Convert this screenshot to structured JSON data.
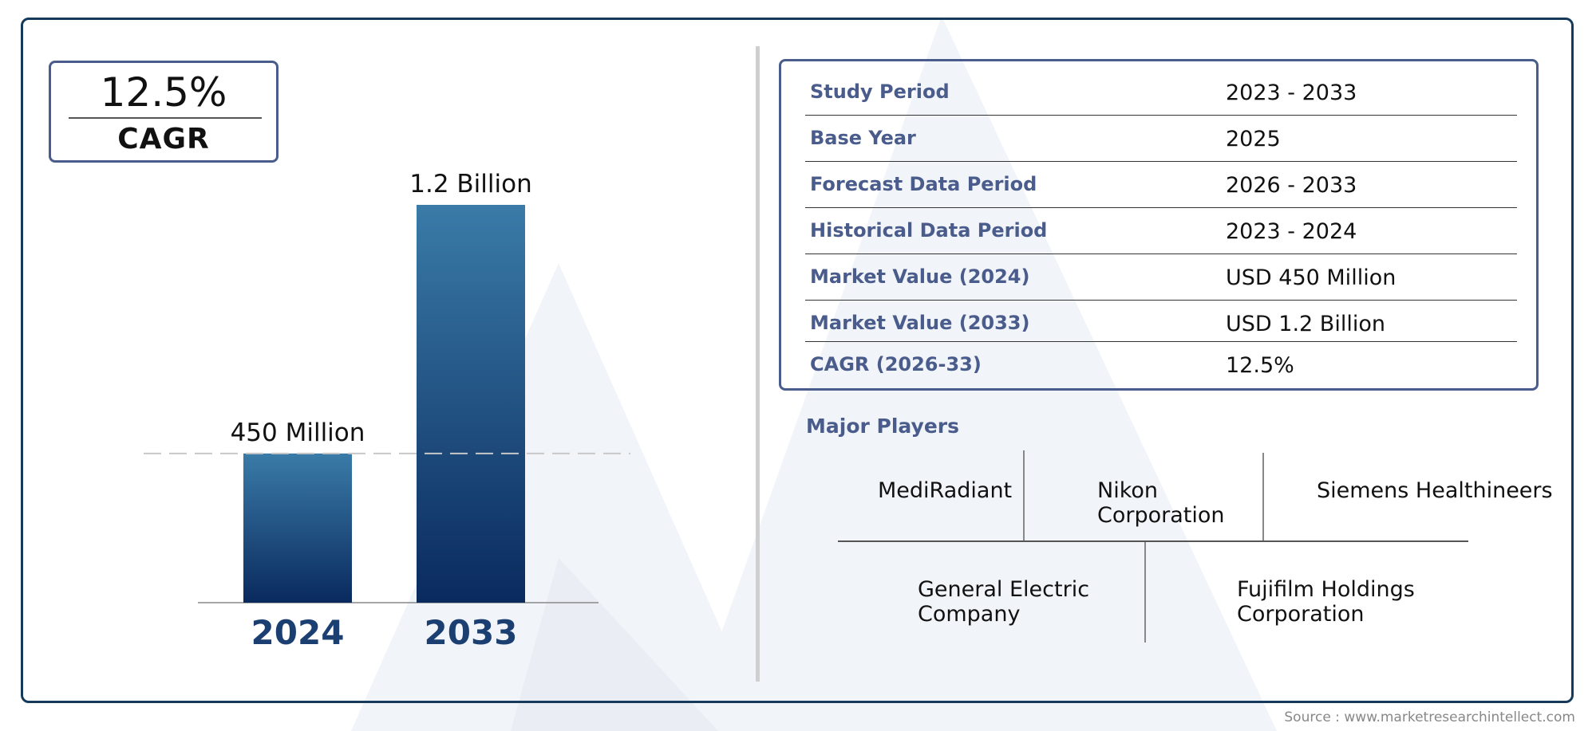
{
  "colors": {
    "frame": "#163a5c",
    "accent": "#4a5c8c",
    "bar_top": "#3a7ba8",
    "bar_bottom": "#0a2a5e",
    "year_label": "#1c3f72"
  },
  "cagr": {
    "value": "12.5%",
    "label": "CAGR"
  },
  "chart_data": {
    "type": "bar",
    "categories": [
      "2024",
      "2033"
    ],
    "values": [
      450,
      1200
    ],
    "unit": "Million",
    "data_labels": [
      "450 Million",
      "1.2 Billion"
    ],
    "reference_line": 450,
    "ylim": [
      0,
      1200
    ],
    "grid": false,
    "legend": "none"
  },
  "info_table": [
    {
      "label": "Study Period",
      "value": "2023 - 2033"
    },
    {
      "label": "Base Year",
      "value": "2025"
    },
    {
      "label": "Forecast Data Period",
      "value": "2026 - 2033"
    },
    {
      "label": "Historical Data Period",
      "value": "2023 - 2024"
    },
    {
      "label": "Market Value (2024)",
      "value": "USD 450 Million"
    },
    {
      "label": "Market Value (2033)",
      "value": "USD 1.2 Billion"
    },
    {
      "label": "CAGR (2026-33)",
      "value": "12.5%"
    }
  ],
  "players": {
    "title": "Major Players",
    "items": [
      [
        "MediRadiant"
      ],
      [
        "Nikon",
        "Corporation"
      ],
      [
        "Siemens Healthineers"
      ],
      [
        "General Electric",
        "Company"
      ],
      [
        "Fujifilm Holdings",
        "Corporation"
      ]
    ]
  },
  "source": "Source : www.marketresearchintellect.com"
}
